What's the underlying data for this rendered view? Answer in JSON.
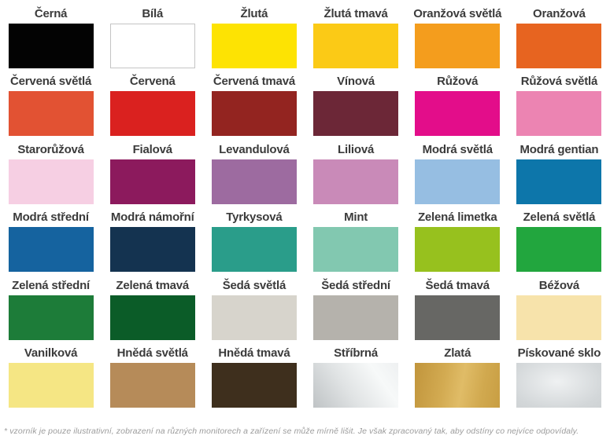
{
  "page": {
    "background": "#ffffff",
    "label_color": "#3b3b3b"
  },
  "footnote": "* vzorník je pouze ilustrativní, zobrazení na různých monitorech a zařízení se může mírně lišit. Je však zpracovaný tak, aby odstíny co nejvíce odpovídaly.",
  "swatches": [
    {
      "label": "Černá",
      "finish": "solid",
      "color": "#030303"
    },
    {
      "label": "Bílá",
      "finish": "solid",
      "color": "#ffffff",
      "border": "#c4c4c4"
    },
    {
      "label": "Žlutá",
      "finish": "solid",
      "color": "#fde303"
    },
    {
      "label": "Žlutá tmavá",
      "finish": "solid",
      "color": "#fbca16"
    },
    {
      "label": "Oranžová světlá",
      "finish": "solid",
      "color": "#f49d1d"
    },
    {
      "label": "Oranžová",
      "finish": "solid",
      "color": "#e76420"
    },
    {
      "label": "Červená světlá",
      "finish": "solid",
      "color": "#e25233"
    },
    {
      "label": "Červená",
      "finish": "solid",
      "color": "#da211f"
    },
    {
      "label": "Červená tmavá",
      "finish": "solid",
      "color": "#932420"
    },
    {
      "label": "Vínová",
      "finish": "solid",
      "color": "#6c2737"
    },
    {
      "label": "Růžová",
      "finish": "solid",
      "color": "#e30d8a"
    },
    {
      "label": "Růžová světlá",
      "finish": "solid",
      "color": "#ec84b2"
    },
    {
      "label": "Starorůžová",
      "finish": "solid",
      "color": "#f6cfe3"
    },
    {
      "label": "Fialová",
      "finish": "solid",
      "color": "#8c1a5d"
    },
    {
      "label": "Levandulová",
      "finish": "solid",
      "color": "#9d6ba0"
    },
    {
      "label": "Liliová",
      "finish": "solid",
      "color": "#c98ab8"
    },
    {
      "label": "Modrá světlá",
      "finish": "solid",
      "color": "#96bee2"
    },
    {
      "label": "Modrá gentian",
      "finish": "solid",
      "color": "#0d76aa"
    },
    {
      "label": "Modrá střední",
      "finish": "solid",
      "color": "#15639f"
    },
    {
      "label": "Modrá námořní",
      "finish": "solid",
      "color": "#143350"
    },
    {
      "label": "Tyrkysová",
      "finish": "solid",
      "color": "#2a9d8a"
    },
    {
      "label": "Mint",
      "finish": "solid",
      "color": "#82c8b0"
    },
    {
      "label": "Zelená limetka",
      "finish": "solid",
      "color": "#97c11e"
    },
    {
      "label": "Zelená světlá",
      "finish": "solid",
      "color": "#22a63e"
    },
    {
      "label": "Zelená střední",
      "finish": "solid",
      "color": "#1d7c39"
    },
    {
      "label": "Zelená tmavá",
      "finish": "solid",
      "color": "#0b5c28"
    },
    {
      "label": "Šedá světlá",
      "finish": "solid",
      "color": "#d7d4cc"
    },
    {
      "label": "Šedá střední",
      "finish": "solid",
      "color": "#b5b2ac"
    },
    {
      "label": "Šedá tmavá",
      "finish": "solid",
      "color": "#676764"
    },
    {
      "label": "Béžová",
      "finish": "solid",
      "color": "#f7e3ab"
    },
    {
      "label": "Vanilková",
      "finish": "solid",
      "color": "#f5e684"
    },
    {
      "label": "Hnědá světlá",
      "finish": "solid",
      "color": "#b68b59"
    },
    {
      "label": "Hnědá tmavá",
      "finish": "solid",
      "color": "#3e2f1d"
    },
    {
      "label": "Stříbrná",
      "finish": "silver",
      "colors": [
        "#bfc3c5",
        "#e0e3e4",
        "#f7f9f9",
        "#eef0f1"
      ]
    },
    {
      "label": "Zlatá",
      "finish": "gold",
      "colors": [
        "#c1953c",
        "#d3ab52",
        "#e0bc67",
        "#d1a94f",
        "#c89e43"
      ]
    },
    {
      "label": "Pískované sklo",
      "finish": "glass",
      "colors": [
        "#eff1f2",
        "#d3d7d9",
        "#ced2d4"
      ]
    }
  ]
}
